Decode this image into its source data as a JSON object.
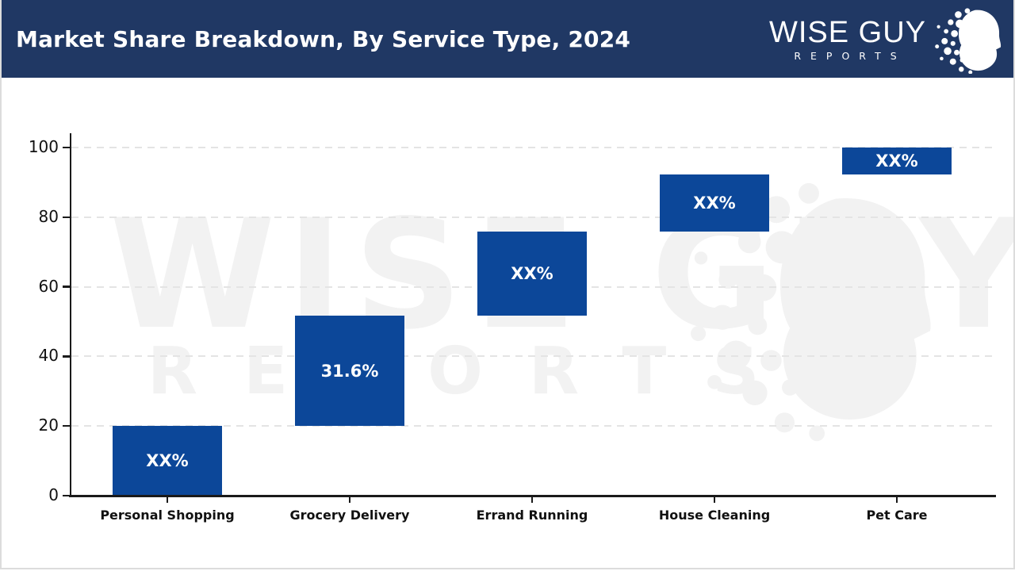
{
  "header": {
    "title": "Market Share Breakdown, By Service Type, 2024",
    "bg_color": "#203864",
    "logo": {
      "line1": "WISE GUY",
      "line2": "REPORTS"
    }
  },
  "watermark": {
    "line1": "WISE GUY",
    "line2": "REPORTS"
  },
  "chart_data": {
    "type": "bar",
    "subtype": "waterfall",
    "title": "Market Share Breakdown, By Service Type, 2024",
    "categories": [
      "Personal Shopping",
      "Grocery Delivery",
      "Errand Running",
      "House Cleaning",
      "Pet Care"
    ],
    "segments": [
      {
        "category": "Personal Shopping",
        "start": 0,
        "end": 20,
        "label": "XX%"
      },
      {
        "category": "Grocery Delivery",
        "start": 20,
        "end": 51.6,
        "label": "31.6%"
      },
      {
        "category": "Errand Running",
        "start": 51.6,
        "end": 75.8,
        "label": "XX%"
      },
      {
        "category": "House Cleaning",
        "start": 75.8,
        "end": 92.3,
        "label": "XX%"
      },
      {
        "category": "Pet Care",
        "start": 92.3,
        "end": 100,
        "label": "XX%"
      }
    ],
    "xlabel": "",
    "ylabel": "",
    "ylim": [
      0,
      100
    ],
    "yticks": [
      0,
      20,
      40,
      60,
      80,
      100
    ],
    "grid": "horizontal-dashed",
    "legend": "none",
    "bar_color": "#0c4799",
    "axis_color": "#1a1a1a",
    "gridline_color": "#e4e4e4",
    "bar_label_color": "#ffffff"
  }
}
